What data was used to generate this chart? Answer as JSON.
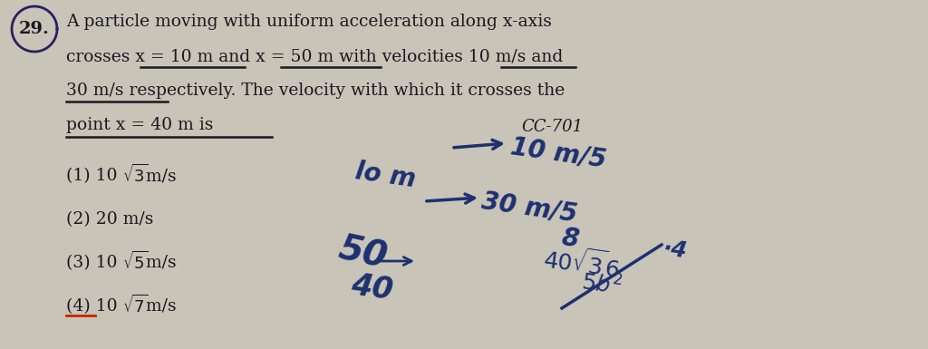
{
  "background_color": "#c8c4b8",
  "font_color": "#1a1820",
  "handwritten_color": "#1e3070",
  "circle_color": "#2a2060",
  "q_number": "29.",
  "line1": "A particle moving with uniform acceleration along x-axis",
  "line2": "crosses x = 10 m and x = 50 m with velocities 10 m/s and",
  "line3": "30 m/s respectively. The velocity with which it crosses the",
  "line4": "point x = 40 m is",
  "cc_label": "CC-701",
  "opt1": "(1) 10",
  "opt1b": "3 m/s",
  "opt2": "(2) 20 m/s",
  "opt3": "(3) 10",
  "opt3b": "5 m/s",
  "opt4": "(4) 10",
  "opt4b": "7 m/s",
  "figsize": [
    10.24,
    3.85
  ],
  "dpi": 100
}
